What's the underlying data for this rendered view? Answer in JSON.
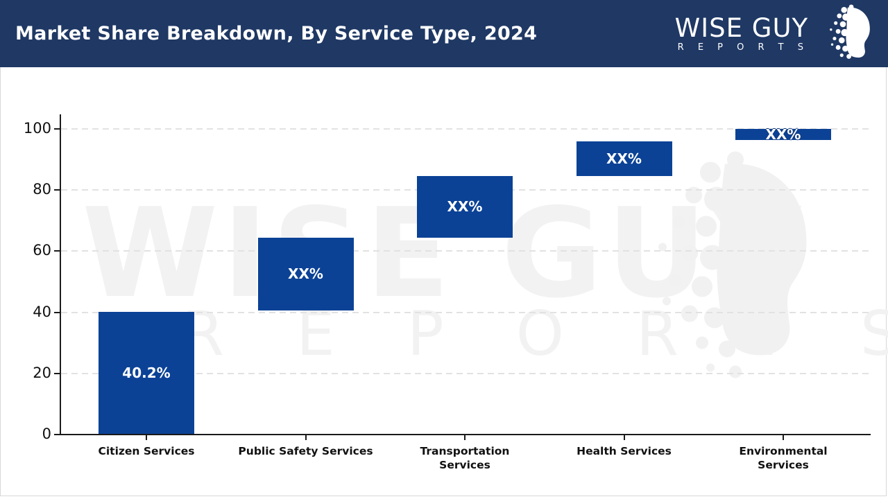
{
  "header": {
    "title": "Market Share Breakdown, By Service Type, 2024",
    "bg_color": "#1F3864",
    "logo": {
      "line1": "WISE GUY",
      "line2": "R E P O R T S"
    }
  },
  "watermark": {
    "line1": "WISE GUY",
    "line2": "R E P O R T S"
  },
  "chart_data": {
    "type": "bar",
    "subtype": "waterfall",
    "title": "Market Share Breakdown, By Service Type, 2024",
    "categories": [
      "Citizen Services",
      "Public Safety Services",
      "Transportation Services",
      "Health Services",
      "Environmental Services"
    ],
    "segments": [
      {
        "category": "Citizen Services",
        "start": 0,
        "end": 40.2,
        "label": "40.2%"
      },
      {
        "category": "Public Safety Services",
        "start": 40.5,
        "end": 64.5,
        "label": "XX%"
      },
      {
        "category": "Transportation Services",
        "start": 64.5,
        "end": 84.5,
        "label": "XX%"
      },
      {
        "category": "Health Services",
        "start": 84.5,
        "end": 96.0,
        "label": "XX%"
      },
      {
        "category": "Environmental Services",
        "start": 96.3,
        "end": 100.0,
        "label": "XX%"
      }
    ],
    "bar_color": "#0B4296",
    "label_color": "#FFFFFF",
    "xlabel": "",
    "ylabel": "",
    "ylim": [
      0,
      104.8
    ],
    "yticks": [
      0,
      20,
      40,
      60,
      80,
      100
    ],
    "grid": "dashed-horizontal",
    "legend": "none"
  }
}
